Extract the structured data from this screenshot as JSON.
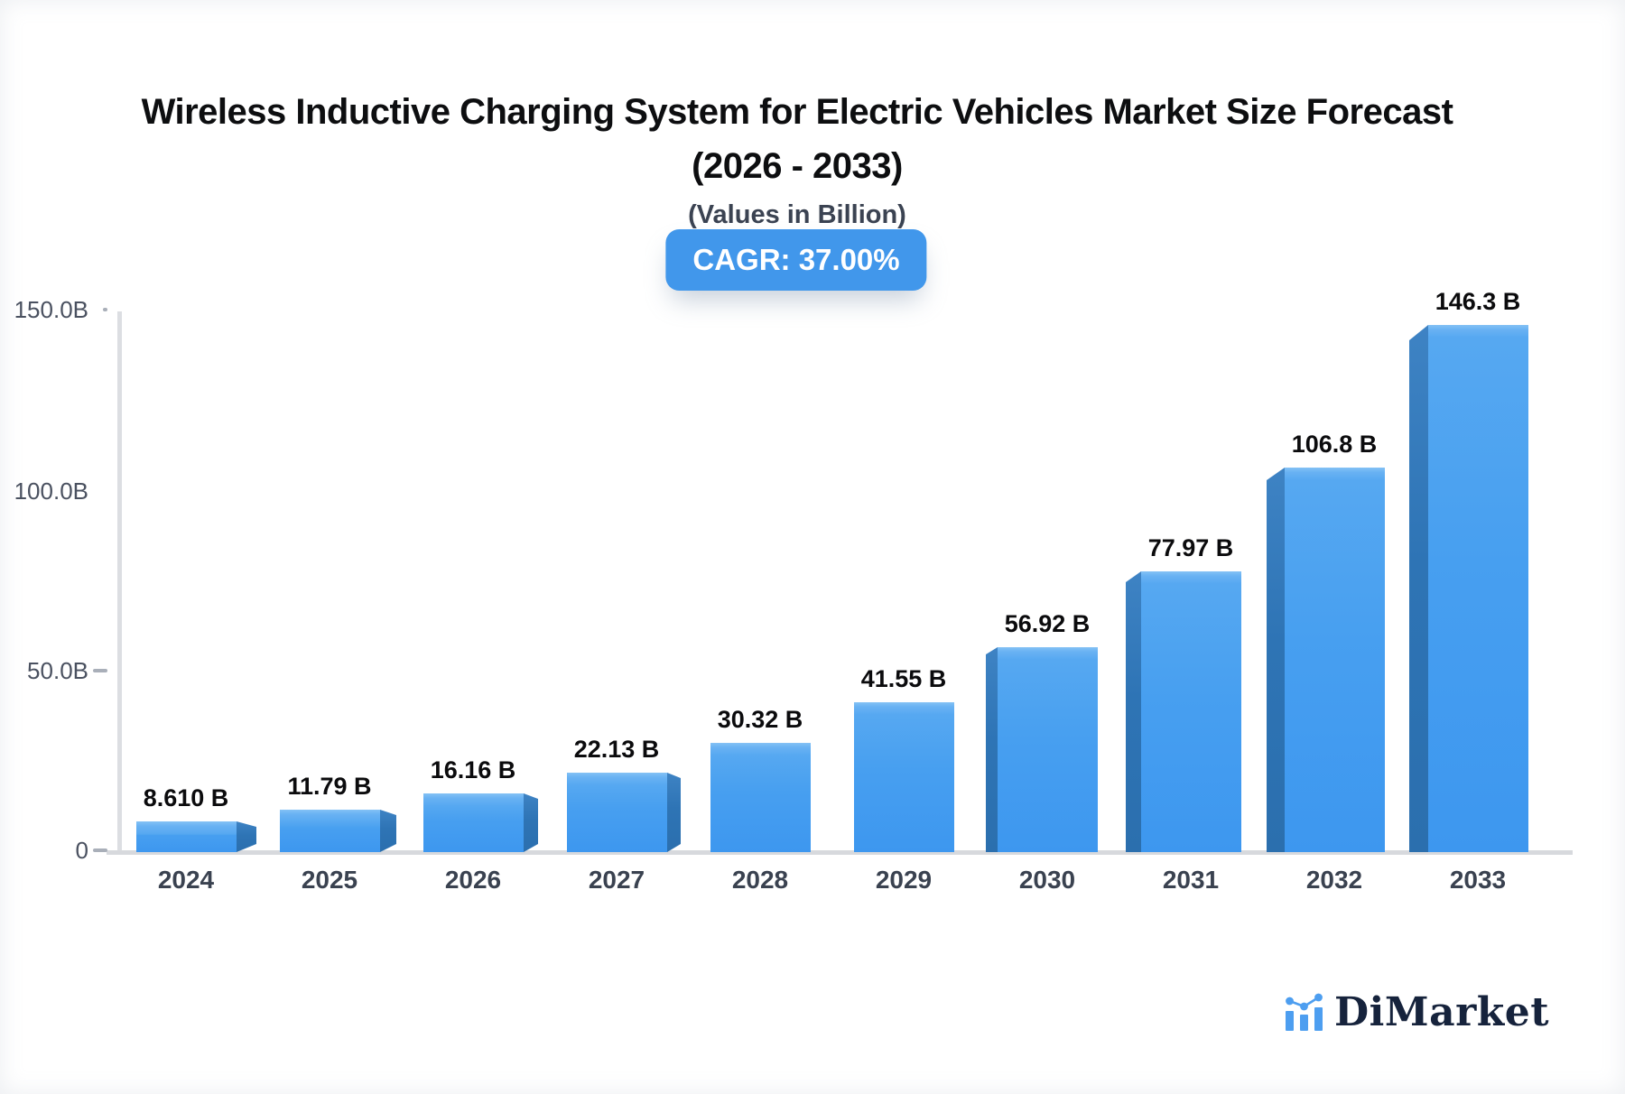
{
  "header": {
    "title_line1": "Wireless Inductive Charging System for Electric Vehicles Market Size Forecast",
    "title_line2": "(2026 - 2033)",
    "subtitle": "(Values in Billion)",
    "cagr_label": "CAGR: 37.00%"
  },
  "chart_data": {
    "type": "bar",
    "title": "Wireless Inductive Charging System for Electric Vehicles Market Size Forecast (2026 - 2033)",
    "subtitle": "(Values in Billion)",
    "cagr_percent": "37.00%",
    "categories": [
      "2024",
      "2025",
      "2026",
      "2027",
      "2028",
      "2029",
      "2030",
      "2031",
      "2032",
      "2033"
    ],
    "values": [
      8.61,
      11.79,
      16.16,
      22.13,
      30.32,
      41.55,
      56.92,
      77.97,
      106.8,
      146.3
    ],
    "value_labels": [
      "8.610 B",
      "11.79 B",
      "16.16 B",
      "22.13 B",
      "30.32 B",
      "41.55 B",
      "56.92 B",
      "77.97 B",
      "106.8 B",
      "146.3 B"
    ],
    "unit": "B",
    "y_ticks": [
      "150.0B",
      "100.0B",
      "50.0B",
      "0"
    ],
    "y_tick_values": [
      150,
      100,
      50,
      0
    ],
    "ylim": [
      0,
      150
    ],
    "xlabel": "",
    "ylabel": "",
    "grid": "off",
    "legend": "none",
    "style": "3d-perspective-bars"
  },
  "branding": {
    "logo_text": "DiMarket",
    "logo_icon": "bar-chart-icon"
  },
  "colors": {
    "bar_face": "#479ff0",
    "bar_face_highlight": "#85c2f5",
    "bar_side": "#2e74b5",
    "badge_bg": "#4197eb",
    "badge_text": "#ffffff",
    "axis_line": "#dcdee2",
    "tick": "#a9afb9",
    "axis_label": "#4a5160",
    "year_label": "#3a4250",
    "value_label": "#0b0b0d",
    "logo_blue": "#4d9ef0",
    "logo_navy": "#16233c"
  }
}
